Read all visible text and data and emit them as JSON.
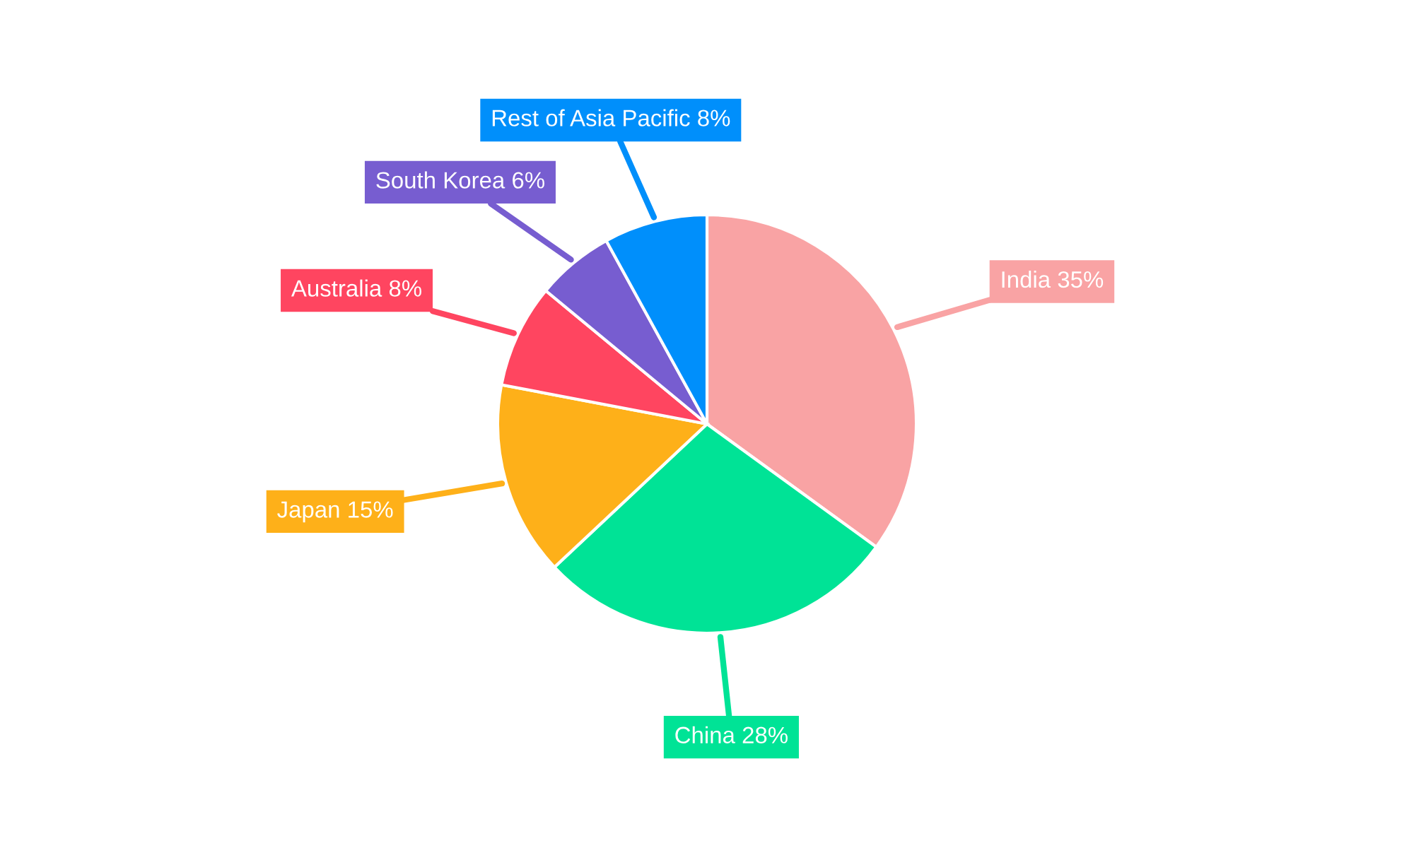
{
  "chart_data": {
    "type": "pie",
    "categories": [
      "India",
      "China",
      "Japan",
      "Australia",
      "South Korea",
      "Rest of Asia Pacific"
    ],
    "values": [
      35,
      28,
      15,
      8,
      6,
      8
    ],
    "value_labels": [
      "35%",
      "28%",
      "15%",
      "8%",
      "6%",
      "8%"
    ],
    "colors": [
      "#f9a3a4",
      "#00e396",
      "#feb019",
      "#ff4560",
      "#775dd0",
      "#008ffb"
    ],
    "legend": false
  }
}
